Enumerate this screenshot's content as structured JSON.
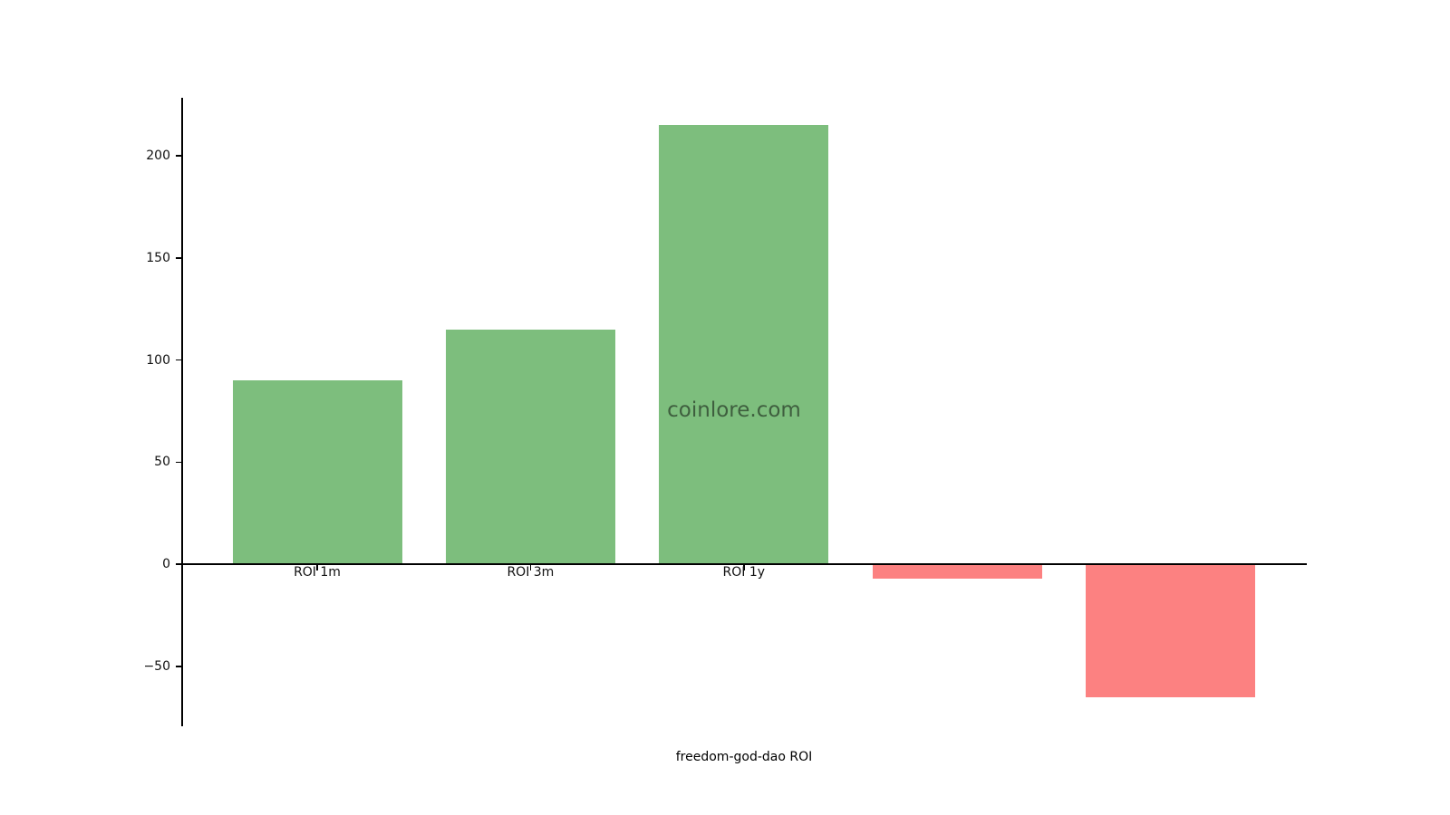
{
  "page": {
    "background_color": "#ffffff"
  },
  "chart_data": {
    "type": "bar",
    "title": "freedom-god-dao ROI",
    "watermark": "coinlore.com",
    "categories": [
      "ROI 1m",
      "ROI 3m",
      "ROI 1y",
      "",
      ""
    ],
    "values": [
      90,
      115,
      215,
      -7,
      -65
    ],
    "series": [
      {
        "name": "ROI",
        "values": [
          90,
          115,
          215,
          -7,
          -65
        ]
      }
    ],
    "positive_color": "#7dbe7d",
    "negative_color": "#fc8181",
    "axis_color": "#000000",
    "tick_label_color": "#111111",
    "xlabel": "",
    "ylabel": "",
    "y_ticks": [
      {
        "label": "200",
        "value": 200
      },
      {
        "label": "150",
        "value": 150
      },
      {
        "label": "100",
        "value": 100
      },
      {
        "label": "50",
        "value": 50
      },
      {
        "label": "0",
        "value": 0
      },
      {
        "label": "−50",
        "value": -50
      }
    ],
    "ylim": [
      -79,
      229
    ],
    "grid": false,
    "legend": "none"
  }
}
